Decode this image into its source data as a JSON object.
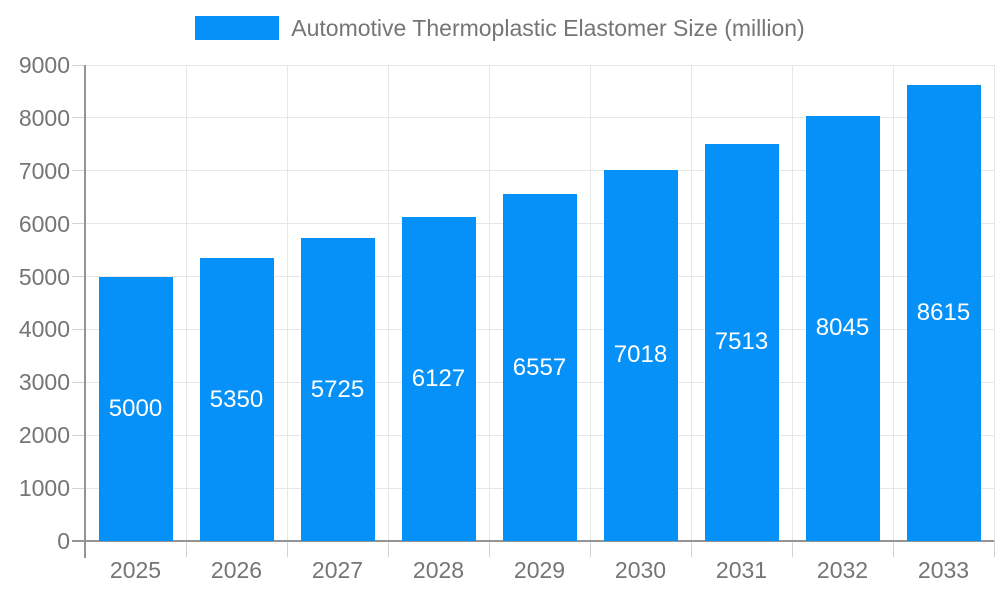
{
  "legend": {
    "label": "Automotive Thermoplastic Elastomer Size (million)"
  },
  "chart_data": {
    "type": "bar",
    "title": "Automotive Thermoplastic Elastomer Size (million)",
    "categories": [
      "2025",
      "2026",
      "2027",
      "2028",
      "2029",
      "2030",
      "2031",
      "2032",
      "2033"
    ],
    "values": [
      5000,
      5350,
      5725,
      6127,
      6557,
      7018,
      7513,
      8045,
      8615
    ],
    "xlabel": "",
    "ylabel": "",
    "ylim": [
      0,
      9000
    ],
    "ytick_step": 1000,
    "yticks": [
      0,
      1000,
      2000,
      3000,
      4000,
      5000,
      6000,
      7000,
      8000,
      9000
    ],
    "grid": true,
    "legend_position": "top-center",
    "bar_value_labels_inside": true,
    "colors": {
      "bar": "#0591F8",
      "bar_label": "#FFFFFF",
      "axis_text": "#757575",
      "axis_line": "#949494",
      "gridline": "#E6E6E6",
      "tick": "#D2D2D2",
      "background": "#FFFFFF"
    }
  }
}
